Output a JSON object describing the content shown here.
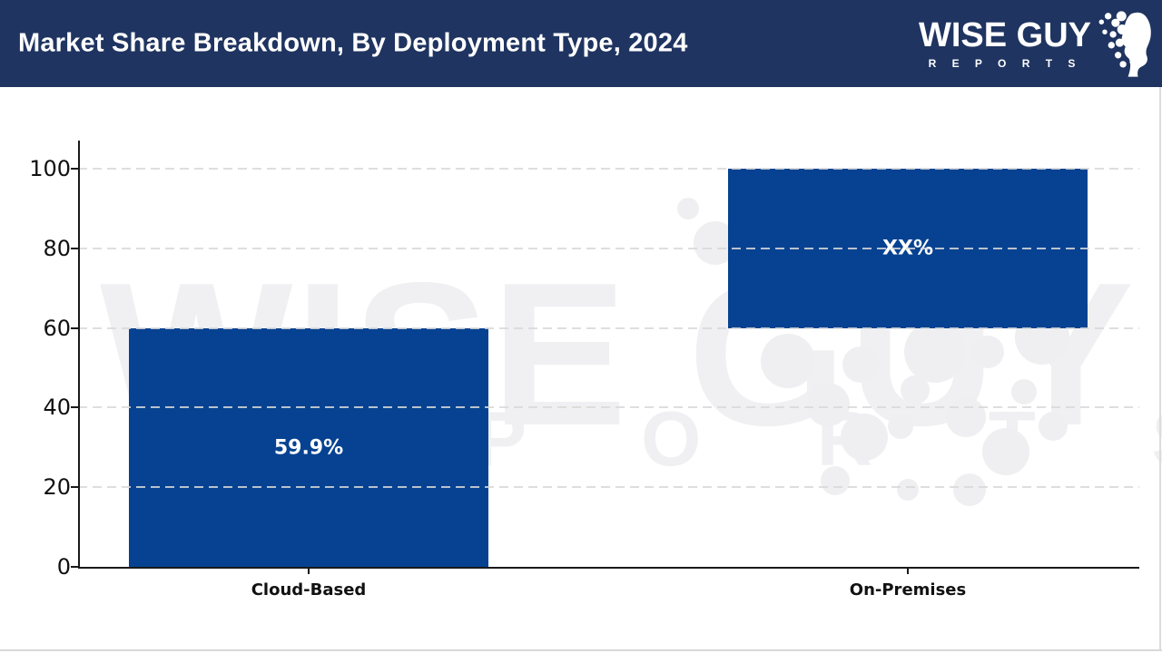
{
  "header": {
    "title": "Market Share Breakdown, By Deployment Type, 2024",
    "logo": {
      "wordmark": "WISE GUY",
      "subtext": "R E P O R T S"
    }
  },
  "watermark": {
    "wordmark": "WISE GUY",
    "subtext": "R E P O R T S"
  },
  "chart_data": {
    "type": "bar",
    "subtype": "floating-percentage-bars",
    "title": "Market Share Breakdown, By Deployment Type, 2024",
    "categories": [
      "Cloud-Based",
      "On-Premises"
    ],
    "bars": [
      {
        "category": "Cloud-Based",
        "span": [
          0,
          59.9
        ],
        "value": 59.9,
        "label": "59.9%"
      },
      {
        "category": "On-Premises",
        "span": [
          59.9,
          100
        ],
        "value": 40.1,
        "label": "XX%",
        "value_masked": true
      }
    ],
    "xlabel": "",
    "ylabel": "",
    "yticks": [
      0,
      20,
      40,
      60,
      80,
      100
    ],
    "ylim": [
      0,
      107
    ],
    "grid": {
      "horizontal": true,
      "style": "dashed",
      "drawn_above_bars": true
    },
    "legend": "none",
    "bar_color": "#064291",
    "bar_label_color": "#ffffff"
  },
  "colors": {
    "header_bg": "#1f3460",
    "header_text": "#ffffff",
    "bar": "#064291",
    "axis": "#1a1a1a",
    "gridline": "#d8d8d8",
    "watermark": "#f0f0f3",
    "page_bg": "#ffffff"
  }
}
